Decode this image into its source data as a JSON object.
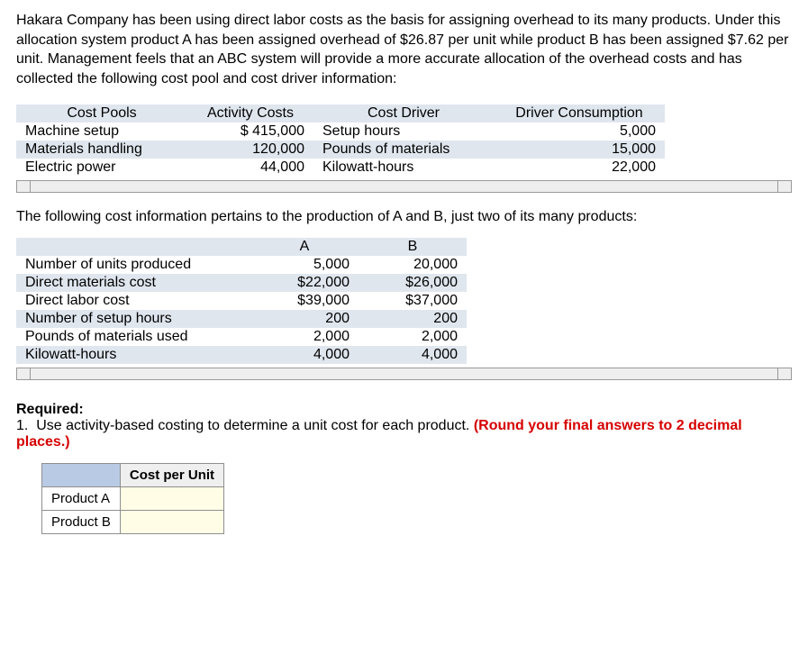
{
  "intro_text": "Hakara Company has been using direct labor costs as the basis for assigning overhead to its many products. Under this allocation system product A has been assigned overhead of $26.87 per unit while product B has been assigned $7.62 per unit. Management feels that an ABC system will provide a more accurate allocation of the overhead costs and has collected the following cost pool and cost driver information:",
  "table1": {
    "headers": [
      "Cost Pools",
      "Activity Costs",
      "Cost Driver",
      "Driver Consumption"
    ],
    "rows": [
      {
        "pool": "Machine setup",
        "cost": "$ 415,000",
        "driver": "Setup hours",
        "consumption": "5,000"
      },
      {
        "pool": "Materials handling",
        "cost": "120,000",
        "driver": "Pounds of materials",
        "consumption": "15,000"
      },
      {
        "pool": "Electric power",
        "cost": "44,000",
        "driver": "Kilowatt-hours",
        "consumption": "22,000"
      }
    ]
  },
  "mid_text": "The following cost information pertains to the production of A and B, just two of its many products:",
  "table2": {
    "col_labels": [
      "",
      "A",
      "B"
    ],
    "rows": [
      {
        "label": "Number of units produced",
        "a": "5,000",
        "b": "20,000"
      },
      {
        "label": "Direct materials cost",
        "a": "$22,000",
        "b": "$26,000"
      },
      {
        "label": "Direct labor cost",
        "a": "$39,000",
        "b": "$37,000"
      },
      {
        "label": "Number of setup hours",
        "a": "200",
        "b": "200"
      },
      {
        "label": "Pounds of materials used",
        "a": "2,000",
        "b": "2,000"
      },
      {
        "label": "Kilowatt-hours",
        "a": "4,000",
        "b": "4,000"
      }
    ]
  },
  "required": {
    "label": "Required:",
    "item_prefix": "1.",
    "item_text": "Use activity-based costing to determine a unit cost for each product.",
    "highlight": "(Round your final answers to 2 decimal places.)"
  },
  "answer_table": {
    "header": "Cost per Unit",
    "rows": [
      "Product A",
      "Product B"
    ]
  }
}
